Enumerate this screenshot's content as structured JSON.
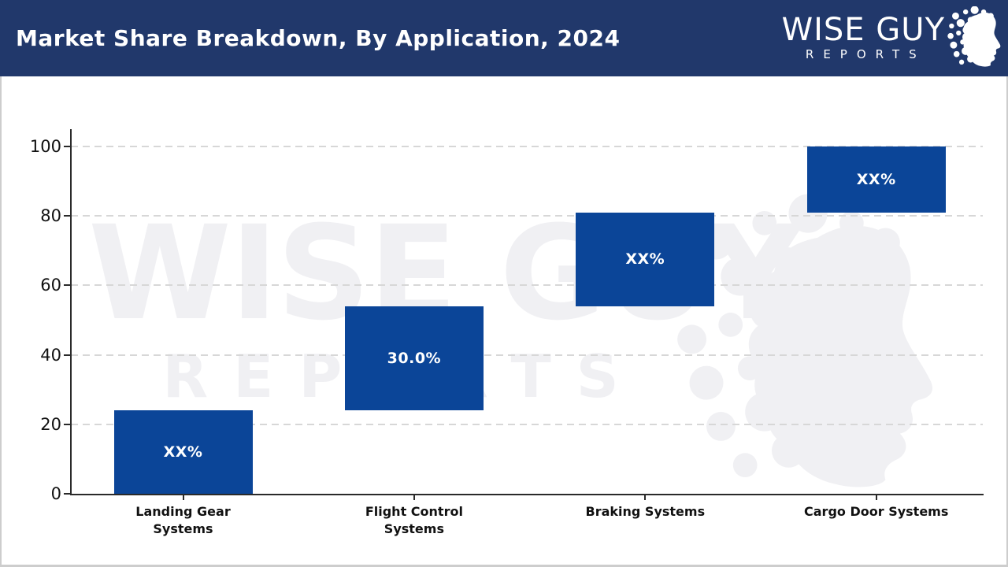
{
  "header": {
    "title": "Market Share Breakdown, By Application, 2024",
    "logo": {
      "line1": "WISE GUY",
      "line2": "REPORTS"
    }
  },
  "watermark": {
    "line1": "WISE GUY",
    "line2": "REPORTS"
  },
  "colors": {
    "header_bg": "#21386b",
    "bar": "#0b4598",
    "bar_label": "#ffffff",
    "watermark": "#f0f0f3",
    "grid": "#d7d7d7",
    "axis": "#2a2a2a",
    "title_text": "#ffffff"
  },
  "chart_data": {
    "type": "bar",
    "subtype": "waterfall",
    "title": "Market Share Breakdown, By Application, 2024",
    "categories": [
      "Landing Gear\nSystems",
      "Flight Control\nSystems",
      "Braking Systems",
      "Cargo Door Systems"
    ],
    "series": [
      {
        "name": "Market Share",
        "segments": [
          {
            "category": "Landing Gear Systems",
            "start": 0,
            "end": 24,
            "value": 24,
            "label": "XX%"
          },
          {
            "category": "Flight Control Systems",
            "start": 24,
            "end": 54,
            "value": 30,
            "label": "30.0%"
          },
          {
            "category": "Braking Systems",
            "start": 54,
            "end": 81,
            "value": 27,
            "label": "XX%"
          },
          {
            "category": "Cargo Door Systems",
            "start": 81,
            "end": 100,
            "value": 19,
            "label": "XX%"
          }
        ]
      }
    ],
    "xlabel": "",
    "ylabel": "",
    "ylim": [
      0,
      105
    ],
    "yticks": [
      0,
      20,
      40,
      60,
      80,
      100
    ],
    "grid": "horizontal-dashed",
    "legend": "none"
  }
}
